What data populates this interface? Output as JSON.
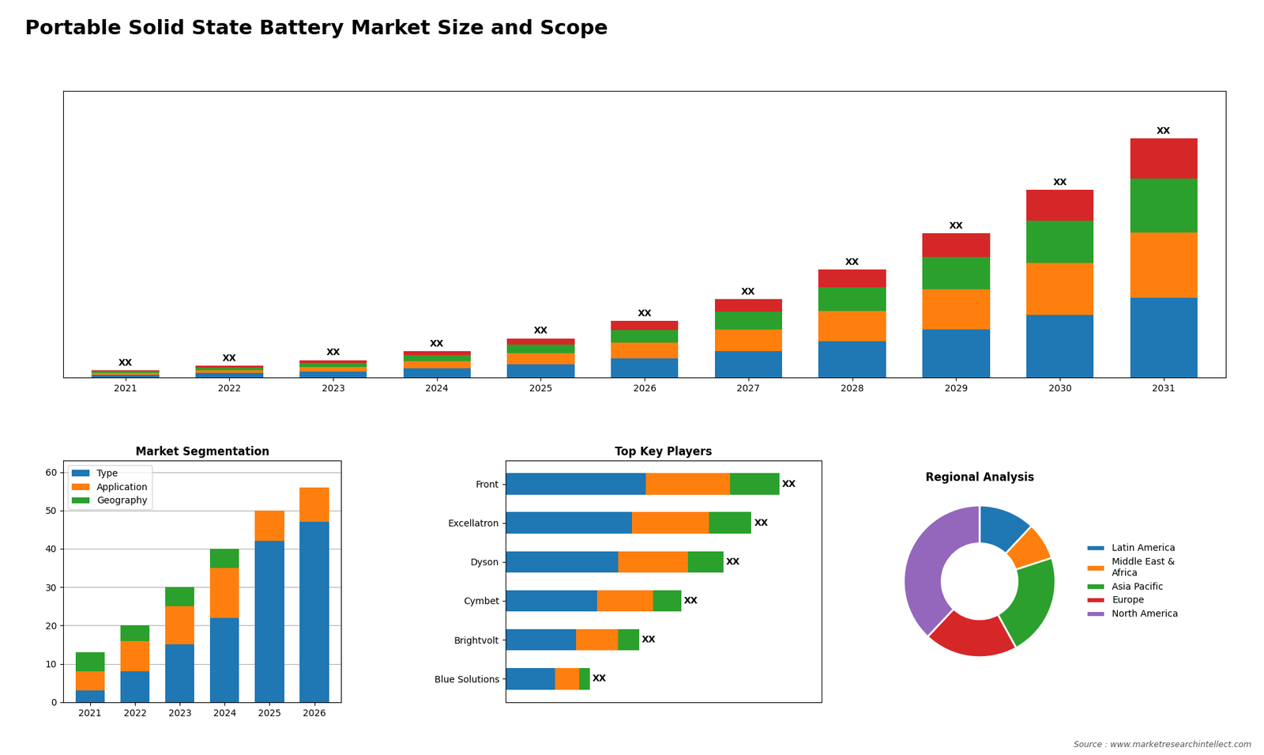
{
  "title": "Portable Solid State Battery Market Size and Scope",
  "annotations": [
    "Source : www.marketresearchintellect.com"
  ],
  "chart_data": [
    {
      "type": "bar",
      "stacked": true,
      "categories": [
        "2021",
        "2022",
        "2023",
        "2024",
        "2025",
        "2026",
        "2027",
        "2028",
        "2029",
        "2030",
        "2031"
      ],
      "series": [
        {
          "values": [
            1.2,
            1.8,
            2.5,
            3.8,
            5.5,
            8.0,
            11.0,
            15.0,
            20.0,
            26.0,
            33.0
          ]
        },
        {
          "values": [
            0.8,
            1.3,
            2.0,
            3.0,
            4.5,
            6.5,
            9.0,
            12.5,
            16.5,
            21.5,
            27.0
          ]
        },
        {
          "values": [
            0.6,
            1.0,
            1.6,
            2.4,
            3.6,
            5.2,
            7.2,
            10.0,
            13.5,
            17.5,
            22.5
          ]
        },
        {
          "values": [
            0.4,
            0.7,
            1.1,
            1.7,
            2.6,
            3.7,
            5.2,
            7.2,
            9.8,
            12.8,
            16.5
          ]
        }
      ],
      "data_labels": true,
      "value_labels": [
        "XX",
        "XX",
        "XX",
        "XX",
        "XX",
        "XX",
        "XX",
        "XX",
        "XX",
        "XX",
        "XX"
      ],
      "ylim": [
        0,
        118.8
      ],
      "tick_labels": "x",
      "grid": false
    },
    {
      "type": "bar",
      "stacked": true,
      "title": "Market Segmentation",
      "categories": [
        "2021",
        "2022",
        "2023",
        "2024",
        "2025",
        "2026"
      ],
      "series": [
        {
          "name": "Type",
          "values": [
            3,
            8,
            15,
            22,
            42,
            47
          ]
        },
        {
          "name": "Application",
          "values": [
            5,
            8,
            10,
            13,
            8,
            9
          ]
        },
        {
          "name": "Geography",
          "values": [
            5,
            4,
            5,
            5,
            0,
            0
          ]
        }
      ],
      "ylim": [
        0,
        63
      ],
      "yticks": [
        0,
        10,
        20,
        30,
        40,
        50,
        60
      ],
      "grid": true,
      "legend": "upper left"
    },
    {
      "type": "bar",
      "stacked": true,
      "orientation": "horizontal",
      "title": "Top Key Players",
      "categories": [
        "Front",
        "Excellatron",
        "Dyson",
        "Cymbet",
        "Brightvolt",
        "Blue Solutions"
      ],
      "series": [
        {
          "values": [
            40,
            36,
            32,
            26,
            20,
            14
          ]
        },
        {
          "values": [
            24,
            22,
            20,
            16,
            12,
            7
          ]
        },
        {
          "values": [
            14,
            12,
            10,
            8,
            6,
            3
          ]
        }
      ],
      "data_labels": true,
      "value_labels": [
        "XX",
        "XX",
        "XX",
        "XX",
        "XX",
        "XX"
      ],
      "xlim": [
        0,
        90
      ],
      "tick_labels": "y",
      "grid": false
    },
    {
      "type": "pie",
      "title": "Regional Analysis",
      "categories": [
        "Latin America",
        "Middle East &\nAfrica",
        "Asia Pacific",
        "Europe",
        "North America"
      ],
      "values": [
        12,
        8,
        22,
        20,
        38
      ],
      "legend": "center left"
    }
  ]
}
